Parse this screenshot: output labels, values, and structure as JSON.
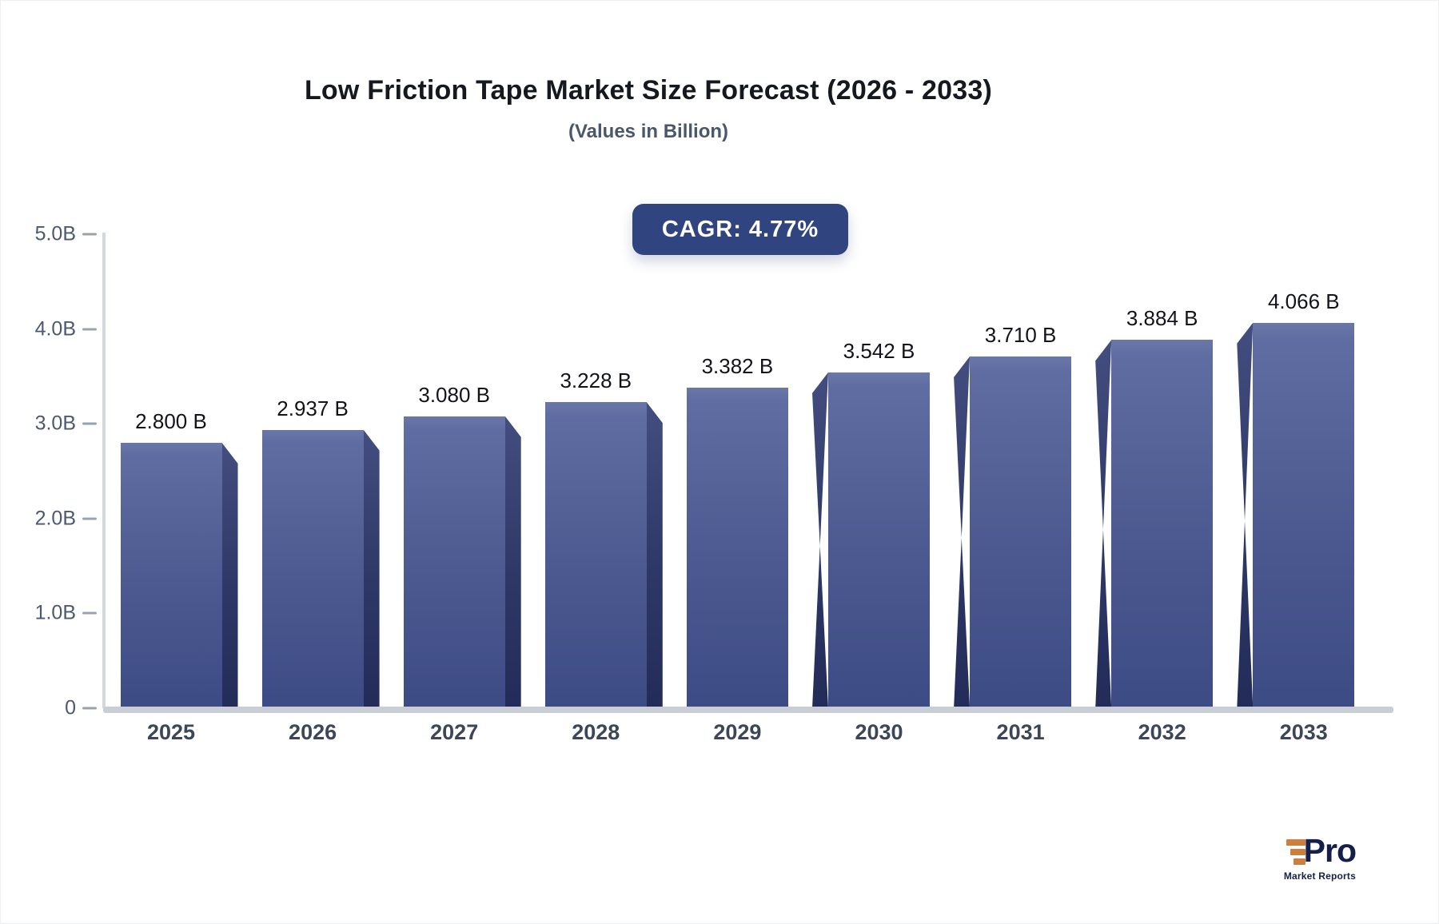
{
  "title": "Low Friction Tape Market Size Forecast (2026 - 2033)",
  "subtitle": "(Values in Billion)",
  "cagr_label": "CAGR: 4.77%",
  "logo": {
    "name": "Pro",
    "tagline": "Market Reports"
  },
  "colors": {
    "badge_bg": "#30447f",
    "bar_face_top": "#5f6da2",
    "bar_face_bottom": "#3d4b85",
    "bar_side": "#2a3462",
    "baseline": "#c9cdd6",
    "logo_orange": "#cc7f3f",
    "logo_navy": "#161f49"
  },
  "chart_data": {
    "type": "bar",
    "title": "Low Friction Tape Market Size Forecast (2026 - 2033)",
    "subtitle": "(Values in Billion)",
    "categories": [
      "2025",
      "2026",
      "2027",
      "2028",
      "2029",
      "2030",
      "2031",
      "2032",
      "2033"
    ],
    "values": [
      2.8,
      2.937,
      3.08,
      3.228,
      3.382,
      3.542,
      3.71,
      3.884,
      4.066
    ],
    "value_labels": [
      "2.800 B",
      "2.937 B",
      "3.080 B",
      "3.228 B",
      "3.382 B",
      "3.542 B",
      "3.710 B",
      "3.884 B",
      "4.066 B"
    ],
    "xlabel": "",
    "ylabel": "",
    "ylim": [
      0,
      5
    ],
    "yticks": [
      {
        "value": 5.0,
        "label": "5.0B"
      },
      {
        "value": 4.0,
        "label": "4.0B"
      },
      {
        "value": 3.0,
        "label": "3.0B"
      },
      {
        "value": 2.0,
        "label": "2.0B"
      },
      {
        "value": 1.0,
        "label": "1.0B"
      },
      {
        "value": 0.0,
        "label": "0"
      }
    ],
    "grid": false,
    "legend": false,
    "annotation": "CAGR: 4.77%"
  }
}
